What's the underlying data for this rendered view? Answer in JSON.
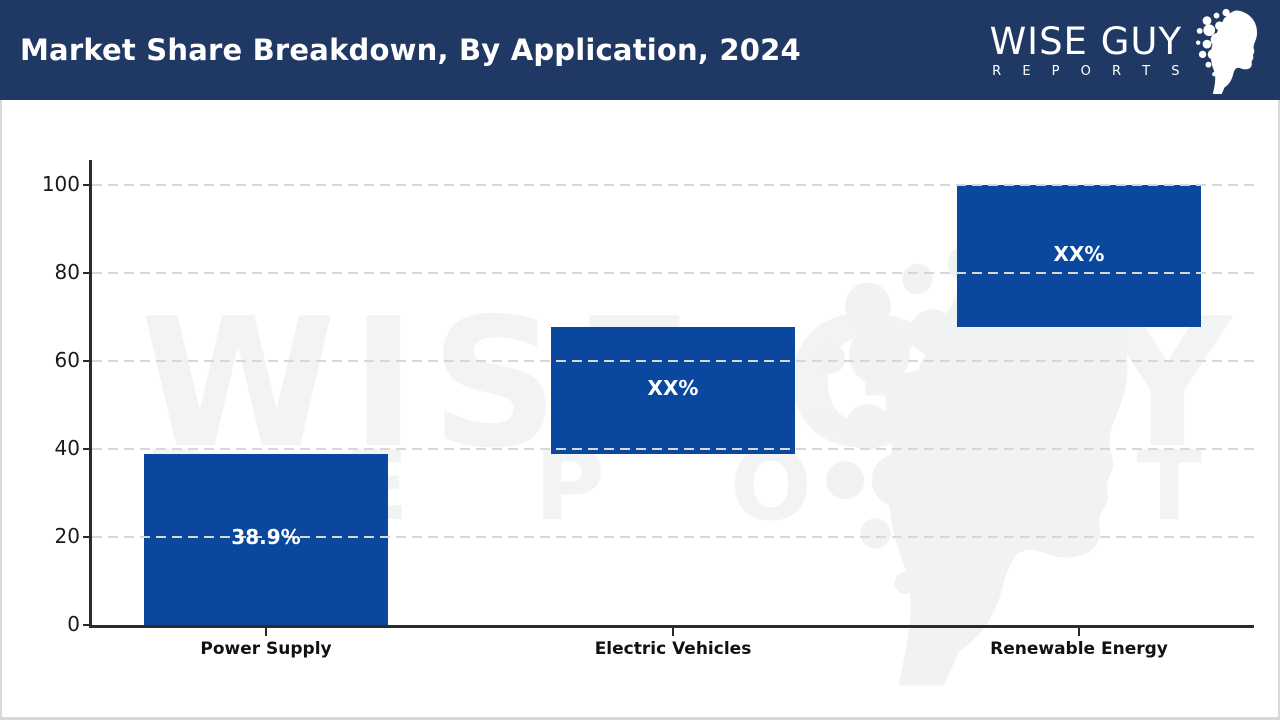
{
  "header": {
    "title": "Market Share Breakdown, By Application, 2024",
    "bg_color": "#1f3864",
    "logo": {
      "line1": "WISE GUY",
      "line2": "R E P O R T S"
    }
  },
  "watermark": {
    "line1": "WISE GUY",
    "line2": "R E P O R T S"
  },
  "colors": {
    "header_bg": "#1f3864",
    "bar": "#0a479f",
    "bar_label": "#ffffff",
    "gridline": "#d8d8d8",
    "axis": "#2b2b2b",
    "watermark": "#f2f3f5",
    "frame_border": "#d9d9d9"
  },
  "chart_data": {
    "type": "bar",
    "variant": "waterfall",
    "title": "Market Share Breakdown, By Application, 2024",
    "categories": [
      "Power Supply",
      "Electric Vehicles",
      "Renewable Energy"
    ],
    "segments": [
      {
        "category": "Power Supply",
        "start": 0,
        "end": 38.9,
        "label": "38.9%"
      },
      {
        "category": "Electric Vehicles",
        "start": 38.9,
        "end": 67.7,
        "label": "XX%"
      },
      {
        "category": "Renewable Energy",
        "start": 67.7,
        "end": 100,
        "label": "XX%"
      }
    ],
    "yticks": [
      0,
      20,
      40,
      60,
      80,
      100
    ],
    "ylim": [
      0,
      105
    ],
    "xlabel": "",
    "ylabel": "",
    "grid": "horizontal-dashed",
    "legend": "none",
    "bar_color": "#0a479f",
    "label_color": "#ffffff"
  }
}
